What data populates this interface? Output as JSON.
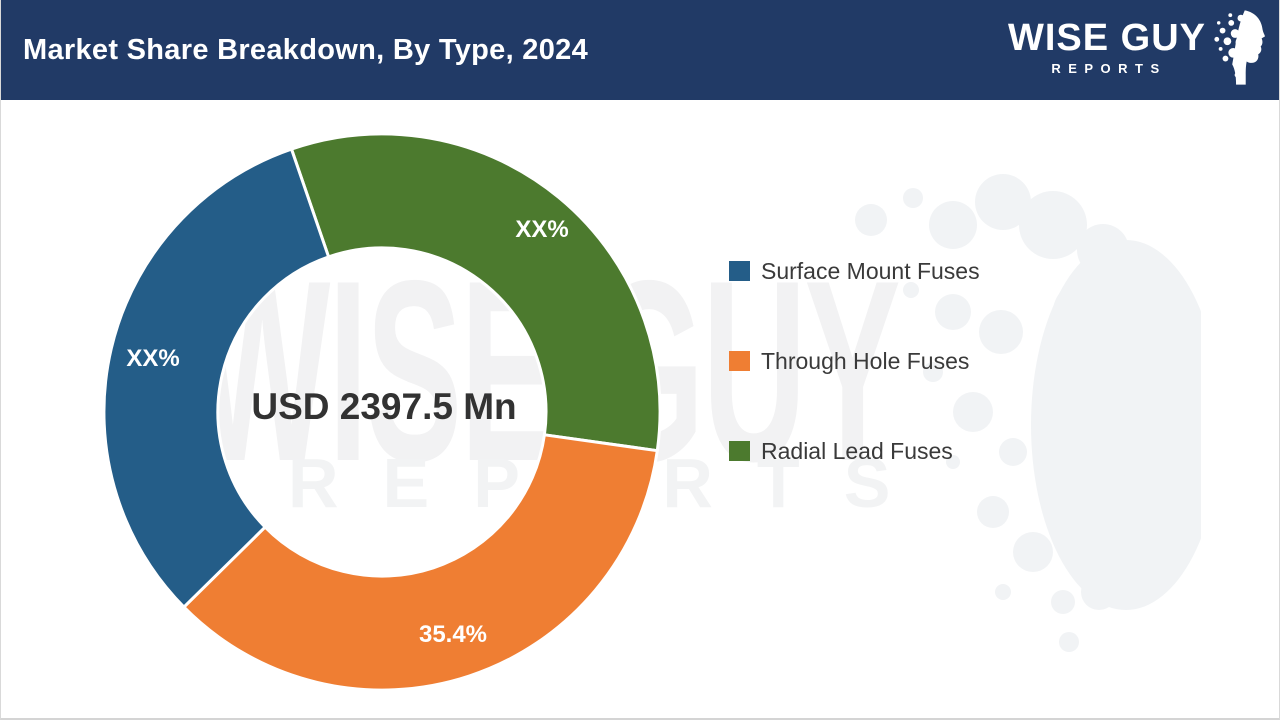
{
  "header": {
    "title": "Market Share Breakdown, By Type, 2024",
    "bg_color": "#213A66",
    "logo": {
      "wordmark": "WISE GUY",
      "subtitle": "REPORTS"
    }
  },
  "watermark": {
    "line1": "WISE GUY",
    "line2": "REPORTS"
  },
  "chart_data": {
    "type": "pie",
    "variant": "donut",
    "title": "Market Share Breakdown, By Type, 2024",
    "center_label": "USD 2397.5 Mn",
    "legend_position": "right",
    "start_bearing_deg": 341,
    "segments": [
      {
        "label": "Surface Mount Fuses",
        "display_value": "XX%",
        "value_pct": 32.1,
        "color": "#245D88"
      },
      {
        "label": "Through Hole Fuses",
        "display_value": "35.4%",
        "value_pct": 35.4,
        "color": "#EF7E33"
      },
      {
        "label": "Radial Lead Fuses",
        "display_value": "XX%",
        "value_pct": 32.5,
        "color": "#4C7A2E"
      }
    ]
  }
}
